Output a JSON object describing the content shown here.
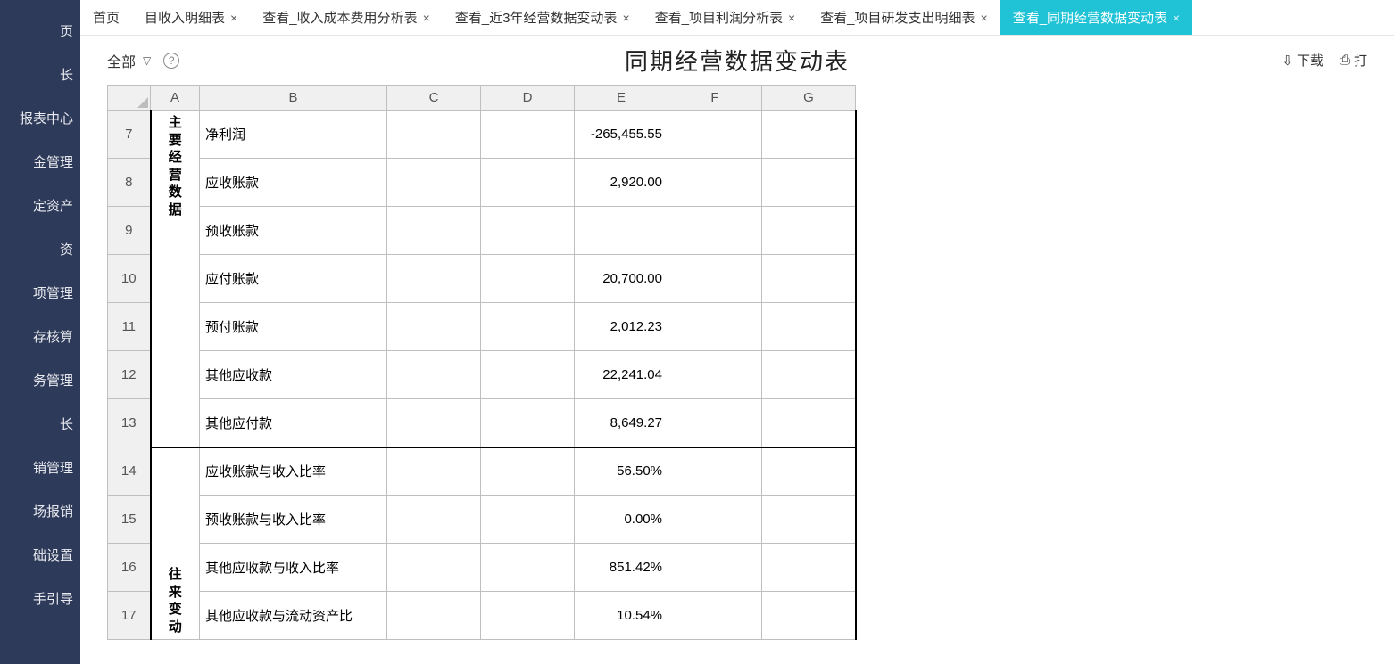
{
  "sidebar": {
    "items": [
      {
        "label": "页"
      },
      {
        "label": "长"
      },
      {
        "label": "报表中心"
      },
      {
        "label": "金管理"
      },
      {
        "label": "定资产"
      },
      {
        "label": "资"
      },
      {
        "label": "项管理"
      },
      {
        "label": "存核算"
      },
      {
        "label": "务管理"
      },
      {
        "label": "长"
      },
      {
        "label": "销管理"
      },
      {
        "label": "场报销"
      },
      {
        "label": "础设置"
      },
      {
        "label": "手引导"
      }
    ]
  },
  "tabs": [
    {
      "label": "首页",
      "closable": false
    },
    {
      "label": "目收入明细表",
      "closable": true
    },
    {
      "label": "查看_收入成本费用分析表",
      "closable": true
    },
    {
      "label": "查看_近3年经营数据变动表",
      "closable": true
    },
    {
      "label": "查看_项目利润分析表",
      "closable": true
    },
    {
      "label": "查看_项目研发支出明细表",
      "closable": true
    },
    {
      "label": "查看_同期经营数据变动表",
      "closable": true,
      "active": true
    }
  ],
  "toolbar": {
    "filter_label": "全部",
    "report_title": "同期经营数据变动表",
    "download_label": "下载",
    "print_label": "打"
  },
  "columns": [
    "A",
    "B",
    "C",
    "D",
    "E",
    "F",
    "G"
  ],
  "group1_header": "主要经营数据",
  "group2_header": "往来变动",
  "rows": [
    {
      "num": 7,
      "b": "净利润",
      "e": "-265,455.55"
    },
    {
      "num": 8,
      "b": "应收账款",
      "e": "2,920.00"
    },
    {
      "num": 9,
      "b": "预收账款",
      "e": ""
    },
    {
      "num": 10,
      "b": "应付账款",
      "e": "20,700.00"
    },
    {
      "num": 11,
      "b": "预付账款",
      "e": "2,012.23"
    },
    {
      "num": 12,
      "b": "其他应收款",
      "e": "22,241.04"
    },
    {
      "num": 13,
      "b": "其他应付款",
      "e": "8,649.27"
    },
    {
      "num": 14,
      "b": "应收账款与收入比率",
      "e": "56.50%"
    },
    {
      "num": 15,
      "b": "预收账款与收入比率",
      "e": "0.00%"
    },
    {
      "num": 16,
      "b": "其他应收款与收入比率",
      "e": "851.42%"
    },
    {
      "num": 17,
      "b": "其他应收款与流动资产比",
      "e": "10.54%"
    }
  ],
  "colors": {
    "sidebar_bg": "#2e3a59",
    "sidebar_text": "#e8eaf0",
    "active_tab_bg": "#20c3d6",
    "header_bg": "#f0f0f0",
    "border": "#bfbfbf"
  }
}
